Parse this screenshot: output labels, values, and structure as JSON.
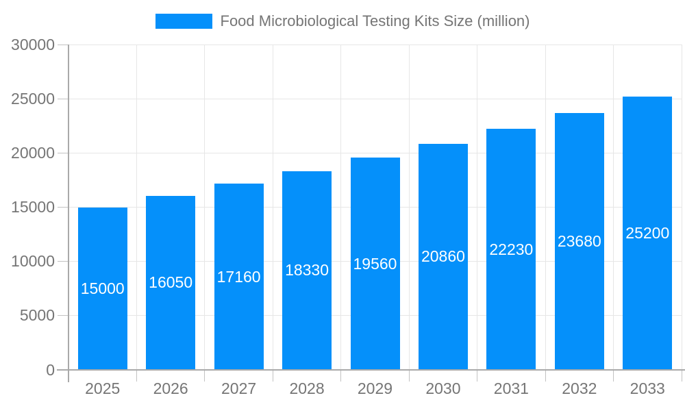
{
  "legend": {
    "label": "Food Microbiological Testing Kits Size (million)"
  },
  "chart_data": {
    "type": "bar",
    "title": "Food Microbiological Testing Kits Size (million)",
    "categories": [
      "2025",
      "2026",
      "2027",
      "2028",
      "2029",
      "2030",
      "2031",
      "2032",
      "2033"
    ],
    "values": [
      15000,
      16050,
      17160,
      18330,
      19560,
      20860,
      22230,
      23680,
      25200
    ],
    "value_labels": [
      "15000",
      "16050",
      "17160",
      "18330",
      "19560",
      "20860",
      "22230",
      "23680",
      "25200"
    ],
    "xlabel": "",
    "ylabel": "",
    "ylim": [
      0,
      30000
    ],
    "ytick_step": 5000,
    "ytick_labels": [
      "0",
      "5000",
      "10000",
      "15000",
      "20000",
      "25000",
      "30000"
    ],
    "grid": true,
    "legend_position": "top-center",
    "value_label_position": "inside-center"
  },
  "colors": {
    "bar": "#0590FA",
    "axis_text": "#757575",
    "gridline": "#e6e6e6",
    "axis_line": "#a9a9a9",
    "value_label": "#ffffff",
    "background": "#ffffff"
  }
}
